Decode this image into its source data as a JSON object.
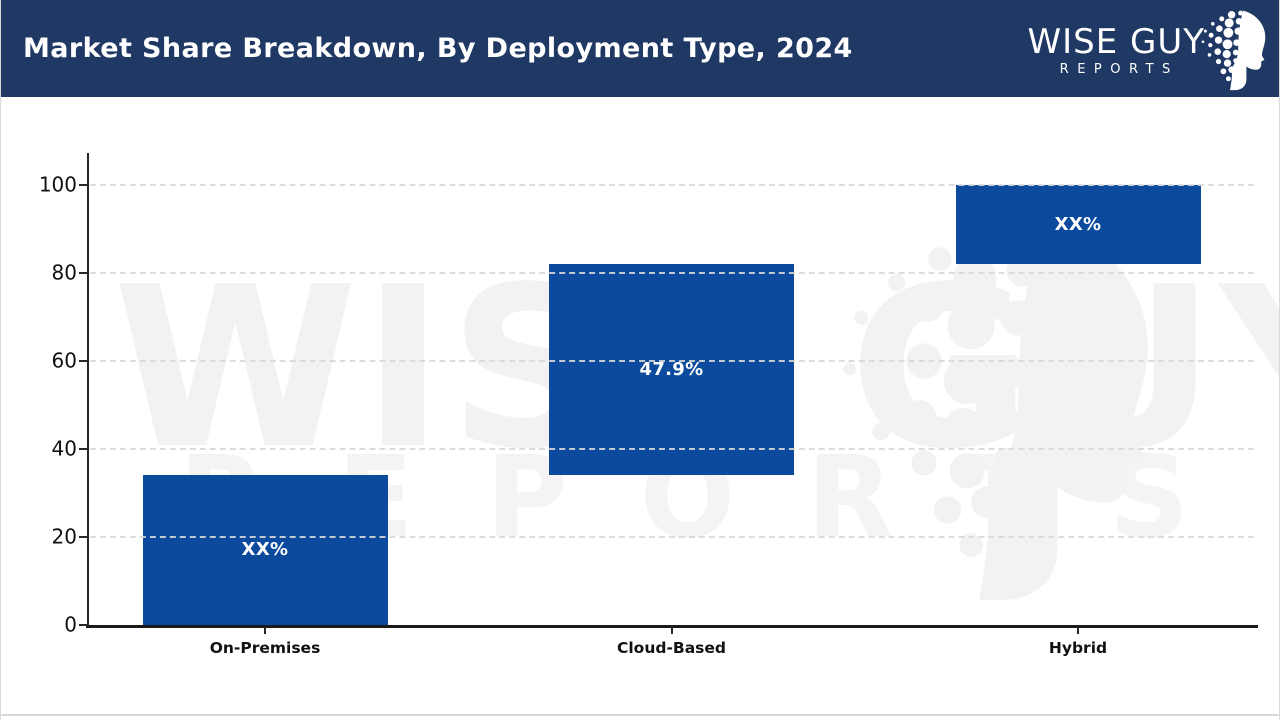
{
  "header": {
    "title": "Market Share Breakdown, By Deployment Type, 2024",
    "bg_color": "#1f3864",
    "logo": {
      "line1": "WISE GUY",
      "line2": "REPORTS"
    }
  },
  "watermark": {
    "line1": "WISE GUY",
    "line2": "REPORTS"
  },
  "chart_data": {
    "type": "bar",
    "subtype": "floating-segment-waterfall",
    "title": "Market Share Breakdown, By Deployment Type, 2024",
    "categories": [
      "On-Premises",
      "Cloud-Based",
      "Hybrid"
    ],
    "segments": [
      {
        "category": "On-Premises",
        "start": 0,
        "end": 34.2,
        "label": "XX%"
      },
      {
        "category": "Cloud-Based",
        "start": 34.2,
        "end": 82.1,
        "label": "47.9%"
      },
      {
        "category": "Hybrid",
        "start": 82.1,
        "end": 100,
        "label": "XX%"
      }
    ],
    "yticks": [
      0,
      20,
      40,
      60,
      80,
      100
    ],
    "ylim": [
      0,
      106.8
    ],
    "xlabel": "",
    "ylabel": "",
    "bar_color": "#0b4a9c",
    "bar_label_color": "#ffffff",
    "grid": "horizontal-dashed",
    "legend": "none"
  }
}
